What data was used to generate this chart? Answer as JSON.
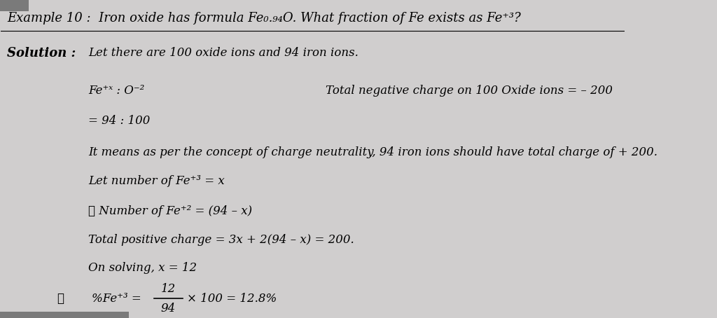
{
  "bg_color": "#d0cece",
  "top_bar_color": "#7a7a7a",
  "title_line": "Example 10 :  Iron oxide has formula Fe₀.₉₄O. What fraction of Fe exists as Fe⁺³?",
  "solution_label": "Solution :",
  "line1": "Let there are 100 oxide ions and 94 iron ions.",
  "line2a": "Fe⁺ˣ : O⁻²",
  "line2b": "Total negative charge on 100 Oxide ions = – 200",
  "line3": "= 94 : 100",
  "line4": "It means as per the concept of charge neutrality, 94 iron ions should have total charge of + 200.",
  "line5": "Let number of Fe⁺³ = x",
  "line6": "∴ Number of Fe⁺² = (94 – x)",
  "line7": "Total positive charge = 3x + 2(94 – x) = 200.",
  "line8": "On solving, x = 12",
  "line9a": "∴",
  "line9b": "%Fe⁺³ =",
  "fraction_num": "12",
  "fraction_den": "94",
  "line9c": "× 100 = 12.8%",
  "font_size_title": 13,
  "font_size_body": 12,
  "font_size_solution": 13
}
